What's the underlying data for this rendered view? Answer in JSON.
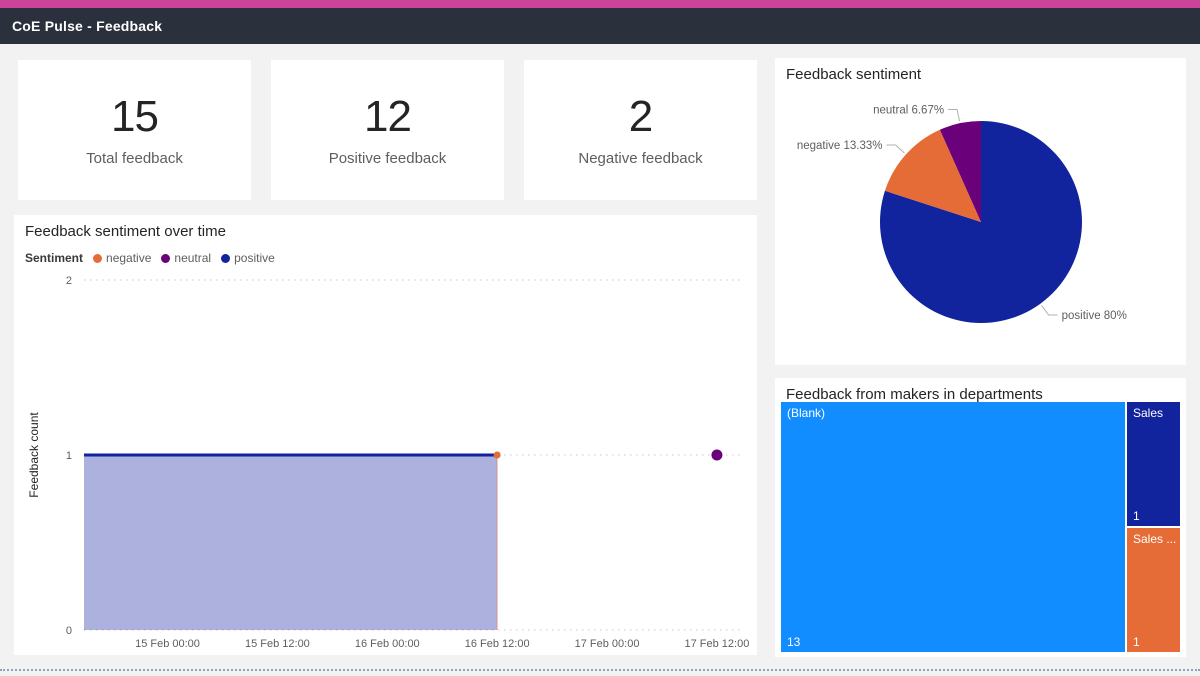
{
  "header": {
    "title": "CoE Pulse - Feedback"
  },
  "colors": {
    "brand_stripe": "#CC4499",
    "header_bg": "#2B313C",
    "page_bg": "#F2F2F2",
    "positive": "#12239E",
    "negative": "#E66C37",
    "neutral": "#6B007B",
    "blank_tile": "#118DFF",
    "area_fill": "rgba(18,35,158,0.35)",
    "grid": "#C8C6C4",
    "axis_text": "#605E5C"
  },
  "cards": [
    {
      "value": "15",
      "label": "Total feedback"
    },
    {
      "value": "12",
      "label": "Positive feedback"
    },
    {
      "value": "2",
      "label": "Negative feedback"
    }
  ],
  "chart_data": [
    {
      "type": "area",
      "title": "Feedback sentiment over time",
      "legend_title": "Sentiment",
      "legend_position": "top",
      "xlabel": "",
      "ylabel": "Feedback count",
      "yticks": [
        0,
        1,
        2
      ],
      "ylim": [
        0,
        2
      ],
      "grid": "dotted-horizontal",
      "x_axis": {
        "tick_labels": [
          "15 Feb 00:00",
          "15 Feb 12:00",
          "16 Feb 00:00",
          "16 Feb 12:00",
          "17 Feb 00:00",
          "17 Feb 12:00"
        ],
        "tick_step_hours": 12,
        "range_in_tick_units": [
          -0.76,
          5.21
        ]
      },
      "series": [
        {
          "name": "negative",
          "color": "#E66C37",
          "type": "point",
          "points": [
            {
              "x": 3,
              "x_label": "16 Feb 12:00",
              "y": 1
            }
          ]
        },
        {
          "name": "neutral",
          "color": "#6B007B",
          "type": "point",
          "points": [
            {
              "x": 5,
              "x_label": "17 Feb 12:00",
              "y": 1
            }
          ]
        },
        {
          "name": "positive",
          "color": "#12239E",
          "type": "area",
          "points": [
            {
              "x": -0.76,
              "x_label": "start of data (plot left)",
              "y": 1
            },
            {
              "x": 3,
              "x_label": "16 Feb 12:00",
              "y": 1
            }
          ]
        }
      ]
    },
    {
      "type": "pie",
      "title": "Feedback sentiment",
      "legend_position": "none",
      "slices": [
        {
          "label": "positive",
          "pct": 80,
          "color": "#12239E",
          "display": "positive 80%"
        },
        {
          "label": "negative",
          "pct": 13.33,
          "color": "#E66C37",
          "display": "negative 13.33%"
        },
        {
          "label": "neutral",
          "pct": 6.67,
          "color": "#6B007B",
          "display": "neutral 6.67%"
        }
      ]
    },
    {
      "type": "treemap",
      "title": "Feedback from makers in departments",
      "tiles": [
        {
          "label": "(Blank)",
          "value": 13,
          "color": "#118DFF"
        },
        {
          "label": "Sales",
          "value": 1,
          "color": "#12239E"
        },
        {
          "label": "Sales ...",
          "value": 1,
          "color": "#E66C37"
        }
      ],
      "total": 15
    }
  ]
}
